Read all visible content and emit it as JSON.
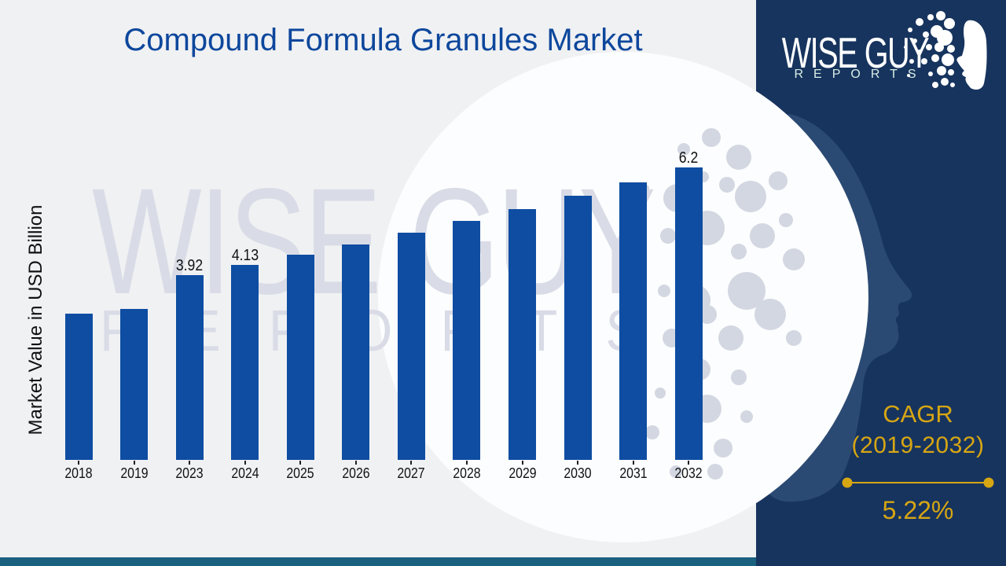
{
  "title": "Compound Formula Granules Market",
  "brand": {
    "logo_line1": "WISE GUY",
    "logo_line2": "REPORTS",
    "watermark_line1": "WISE GUY",
    "watermark_line2": "REPORTS"
  },
  "cagr": {
    "label": "CAGR",
    "range": "(2019-2032)",
    "value": "5.22%"
  },
  "chart_data": {
    "type": "bar",
    "title": "Compound Formula Granules Market",
    "xlabel": "",
    "ylabel": "Market Value in USD Billion",
    "unit": "USD Billion",
    "categories": [
      "2018",
      "2019",
      "2023",
      "2024",
      "2025",
      "2026",
      "2027",
      "2028",
      "2029",
      "2030",
      "2031",
      "2032"
    ],
    "values": [
      3.1,
      3.2,
      3.92,
      4.13,
      4.35,
      4.57,
      4.81,
      5.06,
      5.32,
      5.6,
      5.89,
      6.2
    ],
    "bar_labels": [
      "",
      "",
      "3.92",
      "4.13",
      "",
      "",
      "",
      "",
      "",
      "",
      "",
      "6.2"
    ],
    "ylim": [
      0,
      6.5
    ],
    "grid": false,
    "legend": null,
    "bar_color": "#0e4da2"
  },
  "colors": {
    "bg": "#f0f1f3",
    "navy": "#17345e",
    "face": "#2b4a73",
    "circle": "#fcfdfe",
    "bar": "#0e4da2",
    "gold": "#d7a613",
    "teal": "#19617f",
    "title_blue": "#0d479c",
    "wm_text": "#d9dce6",
    "wm_dots": "#d2d7e1",
    "logo_sub": "#d8efe6"
  }
}
